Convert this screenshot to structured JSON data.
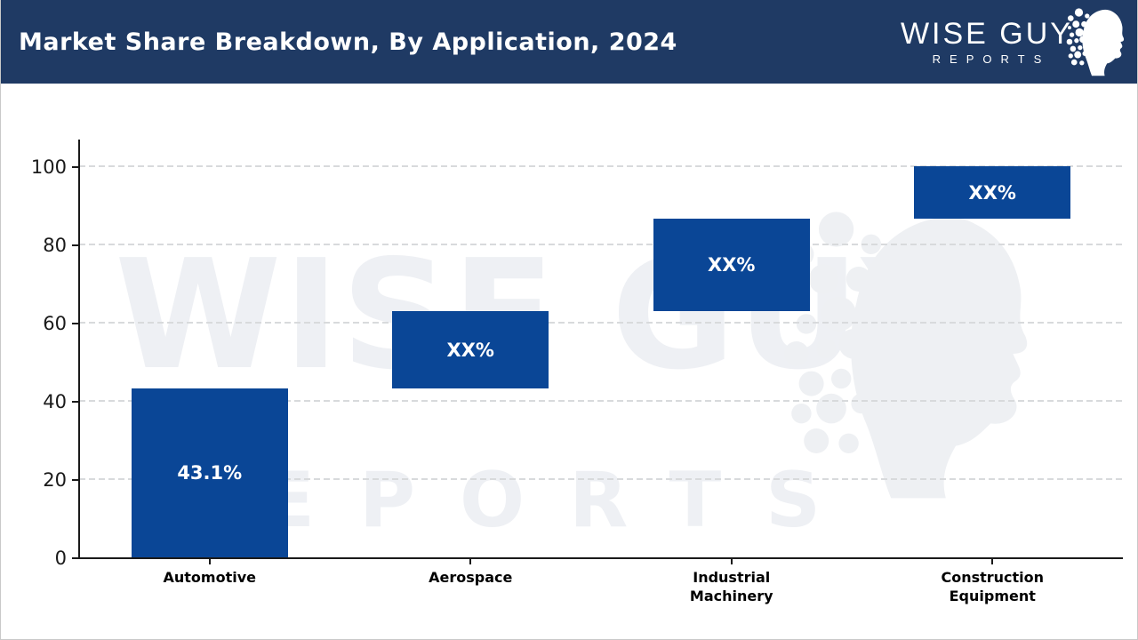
{
  "header": {
    "title": "Market Share Breakdown, By Application, 2024",
    "bg_color": "#1f3a64",
    "logo": {
      "line1": "WISE GUY",
      "line2": "REPORTS"
    }
  },
  "watermark": {
    "line1": "WISE GUY",
    "line2": "REPORTS"
  },
  "chart_data": {
    "type": "bar",
    "subtype": "waterfall",
    "title": "Market Share Breakdown, By Application, 2024",
    "xlabel": "",
    "ylabel": "",
    "ylim": [
      0,
      100
    ],
    "yticks": [
      0,
      20,
      40,
      60,
      80,
      100
    ],
    "grid": "horizontal dashed",
    "legend": "none",
    "bar_color": "#0a4696",
    "categories": [
      {
        "name": "Automotive",
        "lines": [
          "Automotive"
        ]
      },
      {
        "name": "Aerospace",
        "lines": [
          "Aerospace"
        ]
      },
      {
        "name": "Industrial Machinery",
        "lines": [
          "Industrial",
          "Machinery"
        ]
      },
      {
        "name": "Construction Equipment",
        "lines": [
          "Construction",
          "Equipment"
        ]
      }
    ],
    "bars": [
      {
        "category": "Automotive",
        "start": 0,
        "end": 43.1,
        "label": "43.1%"
      },
      {
        "category": "Aerospace",
        "start": 43.1,
        "end": 63.0,
        "label": "XX%"
      },
      {
        "category": "Industrial Machinery",
        "start": 63.0,
        "end": 86.5,
        "label": "XX%"
      },
      {
        "category": "Construction Equipment",
        "start": 86.5,
        "end": 100,
        "label": "XX%"
      }
    ]
  }
}
